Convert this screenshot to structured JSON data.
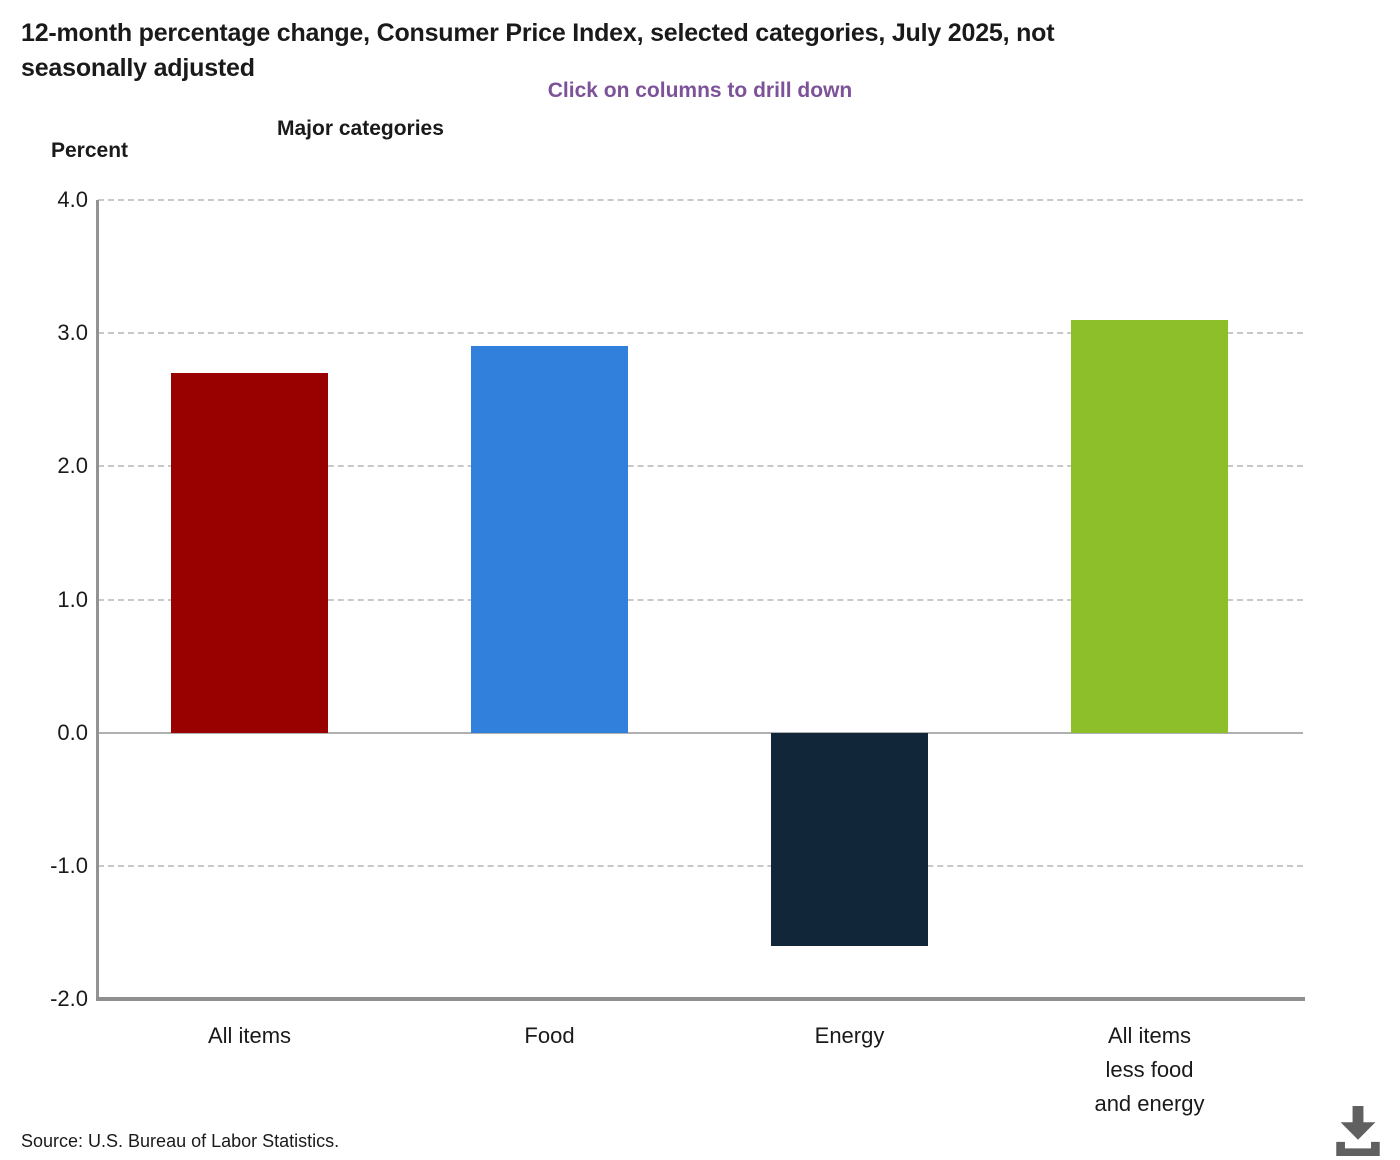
{
  "title": "12-month percentage change, Consumer Price Index, selected categories, July 2025, not seasonally adjusted",
  "title_lines": [
    "12-month percentage change, Consumer Price Index, selected categories, July 2025, not",
    "seasonally adjusted"
  ],
  "subtitle": "Click on columns to drill down",
  "chart_area_label": "Major categories",
  "y_axis_title": "Percent",
  "source": "Source: U.S. Bureau of Labor Statistics.",
  "icons": {
    "download": "download-icon"
  },
  "colors": {
    "title_text": "#1A1A1A",
    "subtitle_text": "#7C5299",
    "bar_all_items": "#990000",
    "bar_food": "#3080DC",
    "bar_energy": "#112639",
    "bar_all_items_less_food_and_energy": "#8CBF2A",
    "gridline": "#C8C8C8",
    "zero_line": "#B0B0B0",
    "axis_line": "#8F8F8F",
    "download_icon": "#606060"
  },
  "chart_data": {
    "type": "bar",
    "title": "12-month percentage change, Consumer Price Index, selected categories, July 2025, not seasonally adjusted",
    "xlabel": "Major categories",
    "ylabel": "Percent",
    "categories": [
      "All items",
      "Food",
      "Energy",
      "All items less food and energy"
    ],
    "category_label_lines": [
      [
        "All items"
      ],
      [
        "Food"
      ],
      [
        "Energy"
      ],
      [
        "All items",
        "less food",
        "and energy"
      ]
    ],
    "values": [
      2.7,
      2.9,
      -1.6,
      3.1
    ],
    "bar_colors": [
      "#990000",
      "#3080DC",
      "#112639",
      "#8CBF2A"
    ],
    "ylim": [
      -2.0,
      4.0
    ],
    "yticks": [
      4.0,
      3.0,
      2.0,
      1.0,
      0.0,
      -1.0,
      -2.0
    ],
    "ytick_labels": [
      "4.0",
      "3.0",
      "2.0",
      "1.0",
      "0.0",
      "-1.0",
      "-2.0"
    ],
    "grid": "horizontal-dashed",
    "legend": "none"
  }
}
